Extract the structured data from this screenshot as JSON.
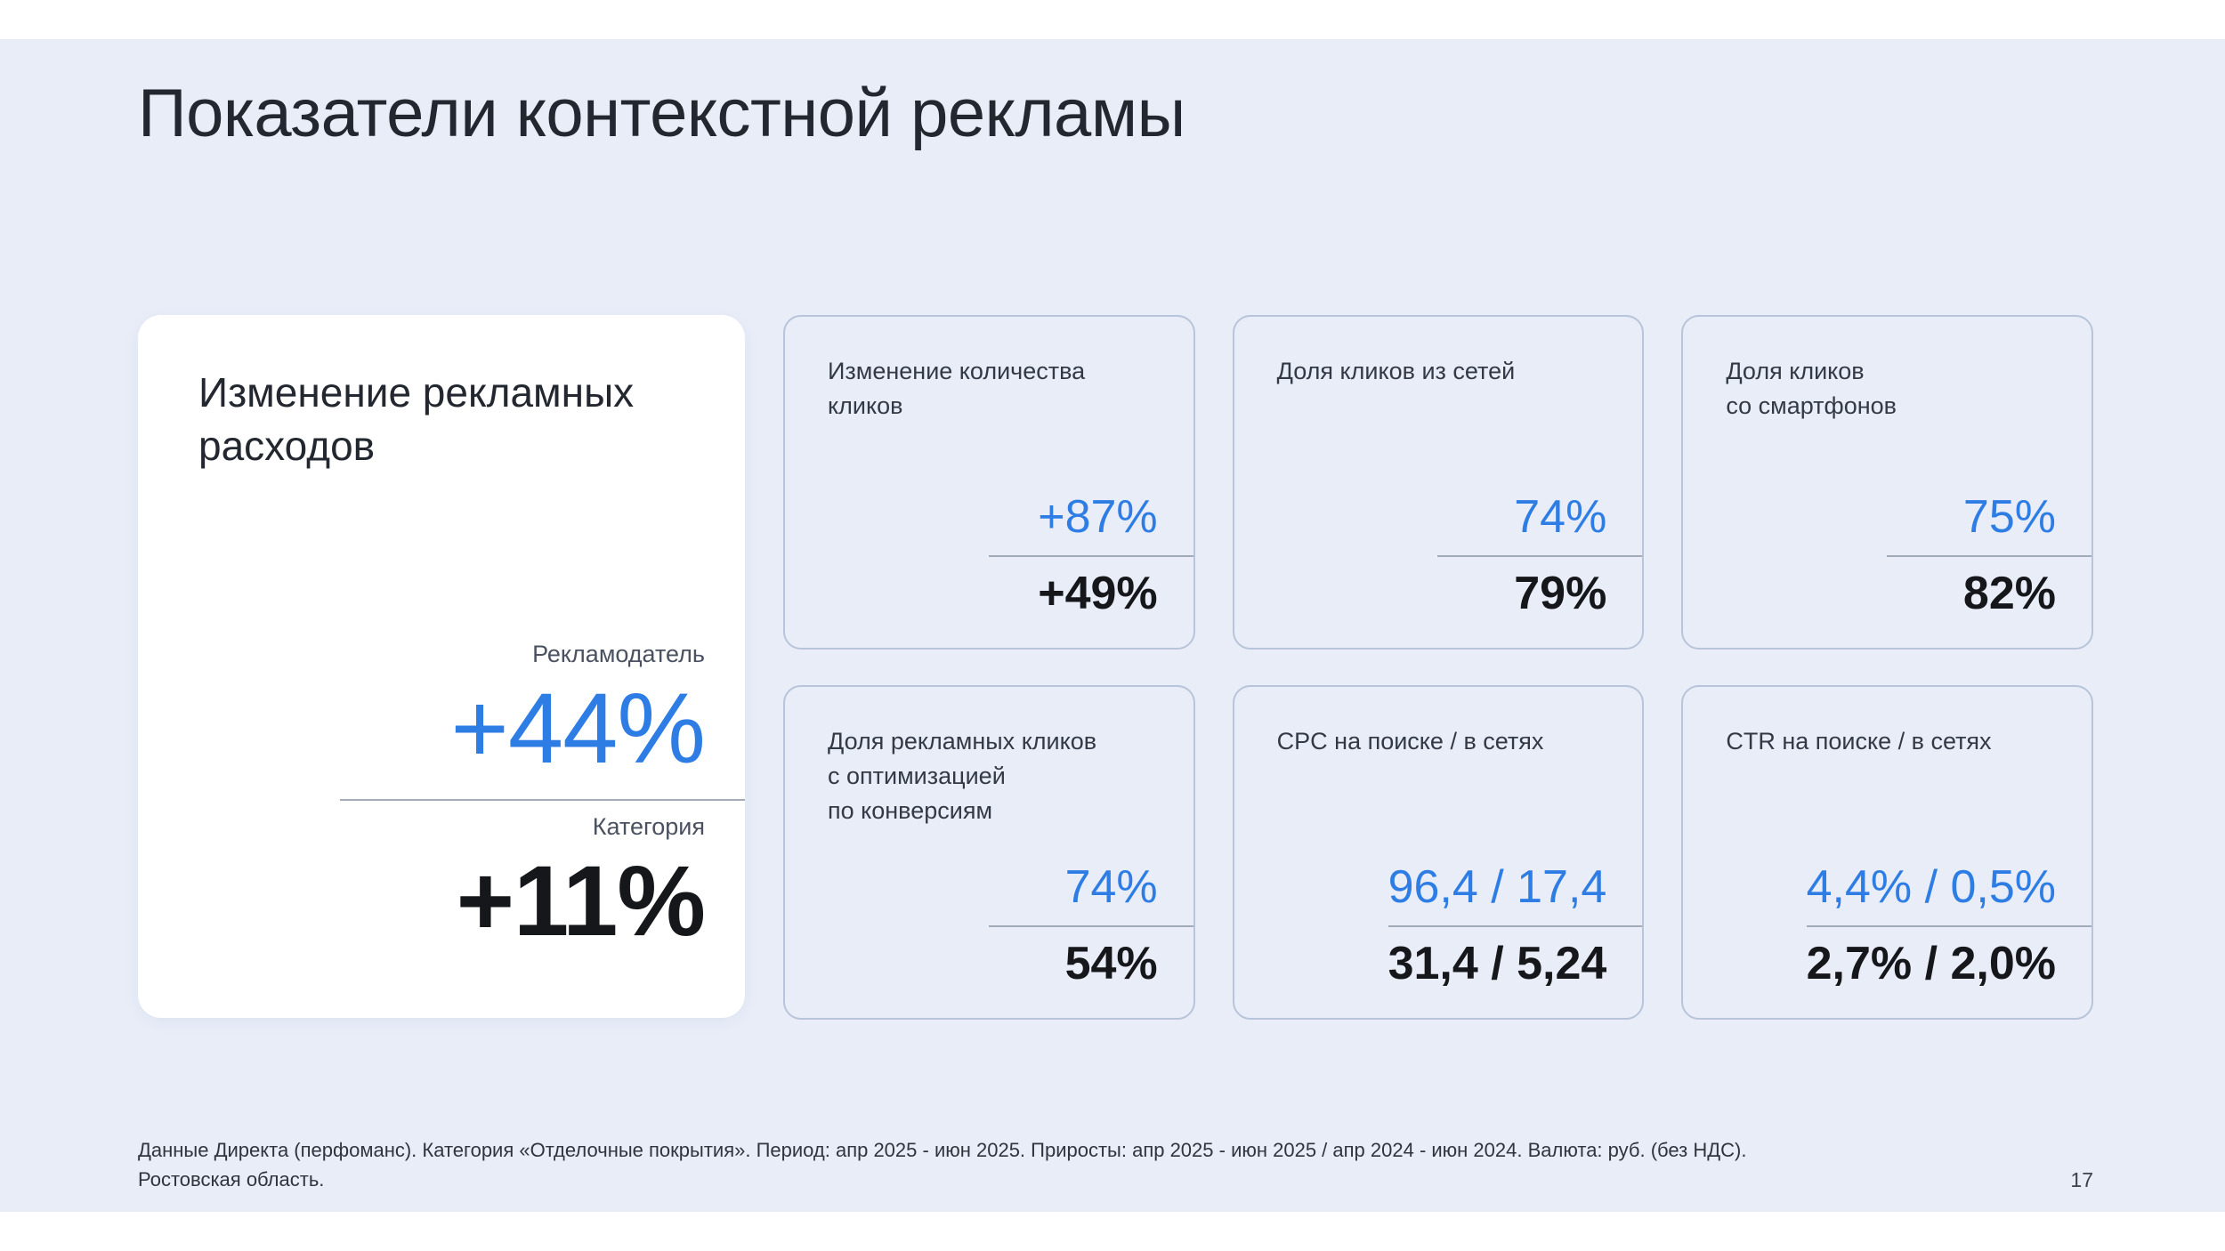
{
  "page": {
    "title": "Показатели контекстной рекламы"
  },
  "main_card": {
    "title": "Изменение рекламных\nрасходов",
    "primary_label": "Рекламодатель",
    "primary_value": "+44%",
    "secondary_label": "Категория",
    "secondary_value": "+11%"
  },
  "cards": [
    {
      "title": "Изменение количества\nкликов",
      "primary": "+87%",
      "secondary": "+49%"
    },
    {
      "title": "Доля кликов из сетей",
      "primary": "74%",
      "secondary": "79%"
    },
    {
      "title": "Доля кликов\nсо смартфонов",
      "primary": "75%",
      "secondary": "82%"
    },
    {
      "title": "Доля рекламных кликов\nс оптимизацией\nпо конверсиям",
      "primary": "74%",
      "secondary": "54%"
    },
    {
      "title": "CPC на поиске / в сетях",
      "primary": "96,4 / 17,4",
      "secondary": "31,4 / 5,24"
    },
    {
      "title": "CTR на поиске / в сетях",
      "primary": "4,4% / 0,5%",
      "secondary": "2,7% / 2,0%"
    }
  ],
  "footer": {
    "line1": "Данные Директа (перфоманс). Категория «Отделочные покрытия». Период: апр 2025 - июн 2025. Приросты: апр 2025 - июн 2025 / апр 2024 - июн 2024. Валюта: руб. (без НДС).",
    "line2": "Ростовская область.",
    "page_number": "17"
  },
  "colors": {
    "background": "#E8EDF8",
    "accent_blue": "#2E7DE4",
    "value_dark": "#16171A",
    "card_border": "#B8C4DA",
    "divider": "#A3ABB9"
  }
}
